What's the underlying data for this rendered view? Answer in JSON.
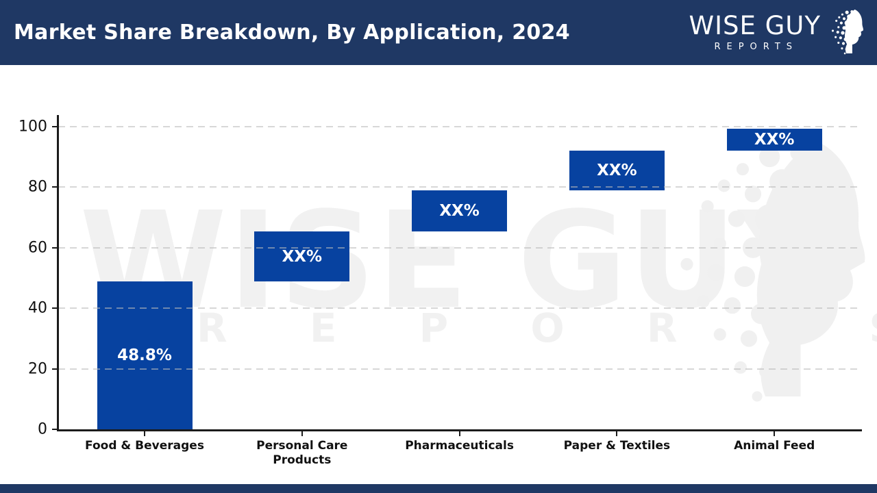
{
  "header": {
    "title": "Market Share Breakdown, By Application, 2024",
    "logo": {
      "line1": "WISE GUY",
      "line2": "REPORTS"
    }
  },
  "watermark": {
    "line1": "WISE GUY",
    "line2": "R E P O R T S"
  },
  "colors": {
    "header_bg": "#1f3864",
    "footer_bg": "#1f3864",
    "bar": "#0742a0",
    "bar_label": "#ffffff",
    "grid": "#d9d9d9",
    "axis": "#1b1b1b",
    "watermark": "#f0f0f0"
  },
  "chart_data": {
    "type": "bar",
    "subtype": "waterfall",
    "title": "Market Share Breakdown, By Application, 2024",
    "categories": [
      "Food & Beverages",
      "Personal Care Products",
      "Pharmaceuticals",
      "Paper & Textiles",
      "Animal Feed"
    ],
    "segments": [
      {
        "category": "Food & Beverages",
        "start": 0,
        "end": 48.8,
        "label": "48.8%"
      },
      {
        "category": "Personal Care Products",
        "start": 48.8,
        "end": 65.3,
        "label": "XX%"
      },
      {
        "category": "Pharmaceuticals",
        "start": 65.3,
        "end": 78.9,
        "label": "XX%"
      },
      {
        "category": "Paper & Textiles",
        "start": 78.9,
        "end": 92.0,
        "label": "XX%"
      },
      {
        "category": "Animal Feed",
        "start": 92.0,
        "end": 99.2,
        "label": "XX%"
      }
    ],
    "y_ticks": [
      0,
      20,
      40,
      60,
      80,
      100
    ],
    "ylim": [
      0,
      105
    ],
    "xlabel": "",
    "ylabel": "",
    "grid": "horizontal-dashed",
    "legend": "none"
  }
}
